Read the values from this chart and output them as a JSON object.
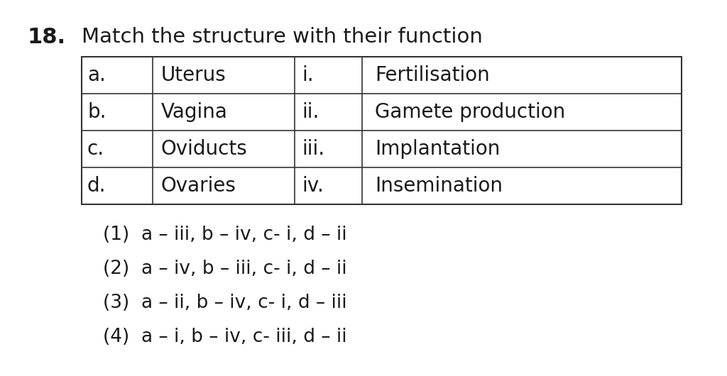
{
  "question_number": "18.",
  "question_text": "Match the structure with their function",
  "table_rows": [
    [
      "a.",
      "Uterus",
      "i.",
      "Fertilisation"
    ],
    [
      "b.",
      "Vagina",
      "ii.",
      "Gamete production"
    ],
    [
      "c.",
      "Oviducts",
      "iii.",
      "Implantation"
    ],
    [
      "d.",
      "Ovaries",
      "iv.",
      "Insemination"
    ]
  ],
  "options": [
    "(1)  a – iii, b – iv, c- i, d – ii",
    "(2)  a – iv, b – iii, c- i, d – ii",
    "(3)  a – ii, b – iv, c- i, d – iii",
    "(4)  a – i, b – iv, c- iii, d – ii"
  ],
  "background": "#ffffff",
  "text_color": "#1a1a1a",
  "qnum_fontsize": 22,
  "qtxt_fontsize": 21,
  "table_fontsize": 20,
  "options_fontsize": 19,
  "fig_width": 10.24,
  "fig_height": 5.3,
  "dpi": 100
}
